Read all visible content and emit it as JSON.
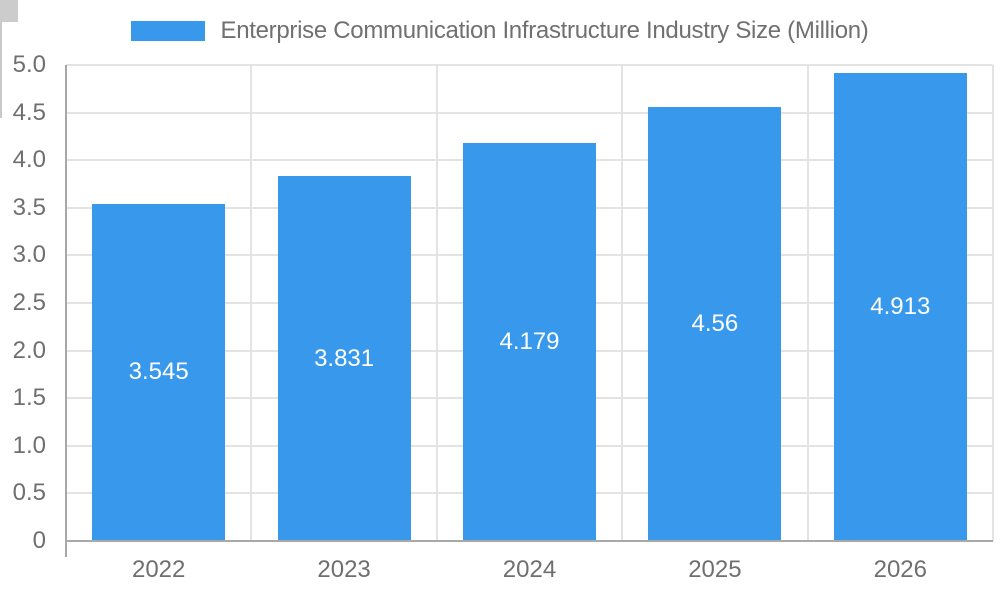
{
  "legend": {
    "label": "Enterprise Communication Infrastructure Industry Size (Million)"
  },
  "chart_data": {
    "type": "bar",
    "title": "Enterprise Communication Infrastructure Industry Size (Million)",
    "categories": [
      "2022",
      "2023",
      "2024",
      "2025",
      "2026"
    ],
    "values": [
      3.545,
      3.831,
      4.179,
      4.56,
      4.913
    ],
    "value_labels": [
      "3.545",
      "3.831",
      "4.179",
      "4.56",
      "4.913"
    ],
    "xlabel": "",
    "ylabel": "",
    "ylim": [
      0,
      5
    ],
    "yticks": [
      0,
      0.5,
      1.0,
      1.5,
      2.0,
      2.5,
      3.0,
      3.5,
      4.0,
      4.5,
      5.0
    ],
    "ytick_labels": [
      "0",
      "0.5",
      "1.0",
      "1.5",
      "2.0",
      "2.5",
      "3.0",
      "3.5",
      "4.0",
      "4.5",
      "5.0"
    ],
    "grid": true,
    "legend_position": "top",
    "bar_color": "#3898ec",
    "value_label_color": "#ffffff",
    "axis_text_color": "#6f6f6f"
  }
}
